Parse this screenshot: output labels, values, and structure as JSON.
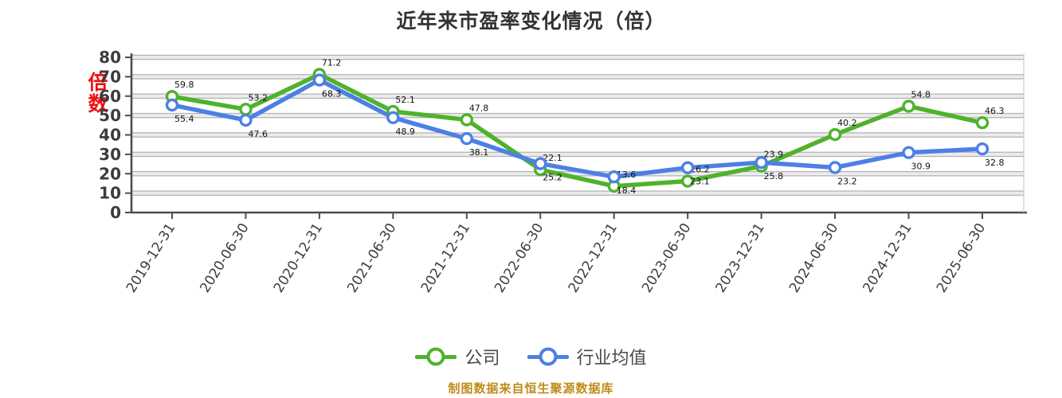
{
  "page": {
    "background": "#ffffff"
  },
  "chart_title": "近年来市盈率变化情况（倍）",
  "y_axis": {
    "unit_label": "倍数",
    "unit_color": "#ee1111",
    "ticks": [
      0,
      10,
      20,
      30,
      40,
      50,
      60,
      70,
      80
    ]
  },
  "legend": [
    {
      "label": "公司",
      "color": "#4fb22d"
    },
    {
      "label": "行业均值",
      "color": "#4d80e4"
    }
  ],
  "caption": {
    "text": "制图数据来自恒生聚源数据库",
    "color": "#bf8c1a"
  },
  "chart_data": {
    "type": "line",
    "title": "近年来市盈率变化情况（倍）",
    "xlabel": "",
    "ylabel": "倍数",
    "ylim": [
      0,
      80
    ],
    "ytick_step": 10,
    "grid": true,
    "legend_position": "bottom",
    "point_labels": true,
    "categories": [
      "2019-12-31",
      "2020-06-30",
      "2020-12-31",
      "2021-06-30",
      "2021-12-31",
      "2022-06-30",
      "2022-12-31",
      "2023-06-30",
      "2023-12-31",
      "2024-06-30",
      "2024-12-31",
      "2025-06-30"
    ],
    "series": [
      {
        "name": "公司",
        "color": "#4fb22d",
        "values": [
          59.8,
          53.2,
          71.2,
          52.1,
          47.8,
          22.1,
          13.6,
          16.2,
          23.9,
          40.2,
          54.8,
          46.3
        ]
      },
      {
        "name": "行业均值",
        "color": "#4d80e4",
        "values": [
          55.4,
          47.6,
          68.3,
          48.9,
          38.1,
          25.2,
          18.4,
          23.1,
          25.8,
          23.2,
          30.9,
          32.8
        ]
      }
    ]
  }
}
